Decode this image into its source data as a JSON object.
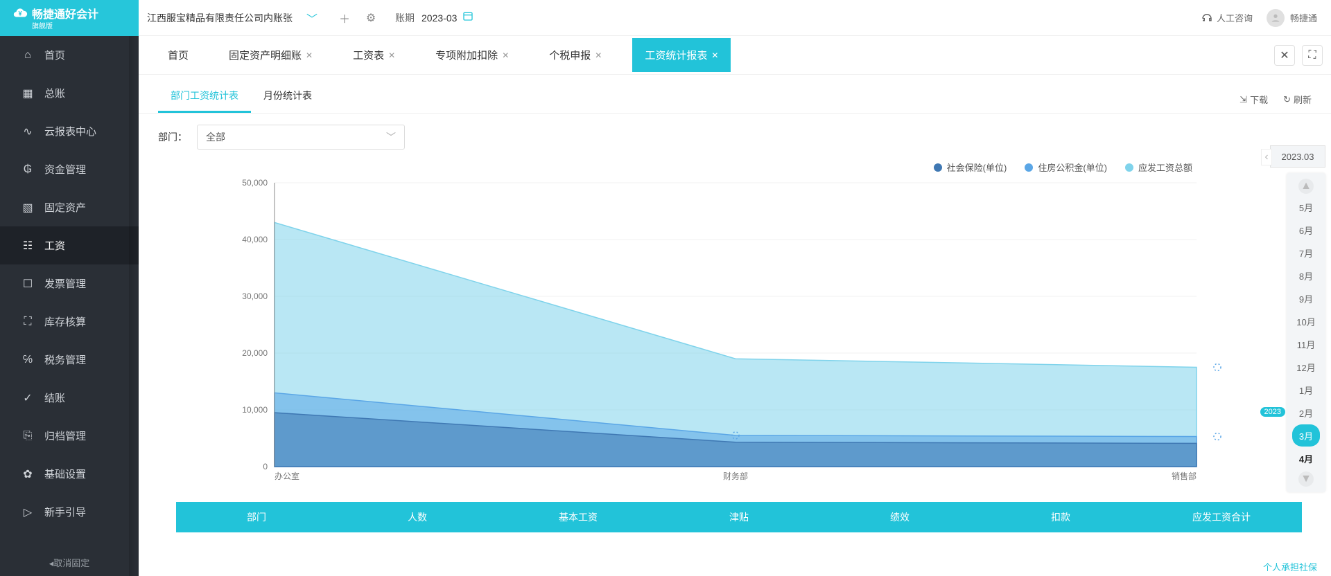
{
  "header": {
    "logo": "畅捷通好会计",
    "logo_sub": "旗舰版",
    "company": "江西服宝精品有限责任公司内账张",
    "period_label": "账期",
    "period_value": "2023-03",
    "support": "人工咨询",
    "username": "畅捷通"
  },
  "sidebar": {
    "items": [
      {
        "icon": "⌂",
        "label": "首页"
      },
      {
        "icon": "▦",
        "label": "总账"
      },
      {
        "icon": "∿",
        "label": "云报表中心"
      },
      {
        "icon": "₲",
        "label": "资金管理"
      },
      {
        "icon": "▧",
        "label": "固定资产"
      },
      {
        "icon": "☷",
        "label": "工资"
      },
      {
        "icon": "☐",
        "label": "发票管理"
      },
      {
        "icon": "⛶",
        "label": "库存核算"
      },
      {
        "icon": "℅",
        "label": "税务管理"
      },
      {
        "icon": "✓",
        "label": "结账"
      },
      {
        "icon": "⎘",
        "label": "归档管理"
      },
      {
        "icon": "✿",
        "label": "基础设置"
      },
      {
        "icon": "▷",
        "label": "新手引导"
      }
    ],
    "active_index": 5,
    "footer": "◂取消固定"
  },
  "tabs": {
    "items": [
      {
        "label": "首页",
        "closable": false
      },
      {
        "label": "固定资产明细账",
        "closable": true
      },
      {
        "label": "工资表",
        "closable": true
      },
      {
        "label": "专项附加扣除",
        "closable": true
      },
      {
        "label": "个税申报",
        "closable": true
      },
      {
        "label": "工资统计报表",
        "closable": true
      }
    ],
    "active_index": 5
  },
  "subtabs": {
    "items": [
      "部门工资统计表",
      "月份统计表"
    ],
    "active_index": 0,
    "download": "下载",
    "refresh": "刷新"
  },
  "filter": {
    "label": "部门：",
    "value": "全部"
  },
  "chart": {
    "type": "area",
    "categories": [
      "办公室",
      "财务部",
      "销售部"
    ],
    "series": [
      {
        "name": "社会保险(单位)",
        "color": "#3f78b3",
        "values": [
          9500,
          4300,
          4100
        ]
      },
      {
        "name": "住房公积金(单位)",
        "color": "#5aa6e6",
        "values": [
          13000,
          5500,
          5300
        ]
      },
      {
        "name": "应发工资总额",
        "color": "#7fd3eb",
        "values": [
          43000,
          19000,
          17500
        ]
      }
    ],
    "ylim": [
      0,
      50000
    ],
    "ytick_step": 10000,
    "grid_color": "#f0f0f0",
    "axis_color": "#888",
    "label_fontsize": 12,
    "label_color": "#777",
    "fill_opacity": 0.55,
    "marker_radius": 5
  },
  "table_header": [
    "部门",
    "人数",
    "基本工资",
    "津贴",
    "绩效",
    "扣款",
    "应发工资合计"
  ],
  "table_overflow_hint": "个人承担社保",
  "rail": {
    "header": "2023.03",
    "months": [
      "5月",
      "6月",
      "7月",
      "8月",
      "9月",
      "10月",
      "11月",
      "12月",
      "1月",
      "2月",
      "3月",
      "4月"
    ],
    "selected": "3月",
    "bold": "4月",
    "year_pill": "2023"
  }
}
